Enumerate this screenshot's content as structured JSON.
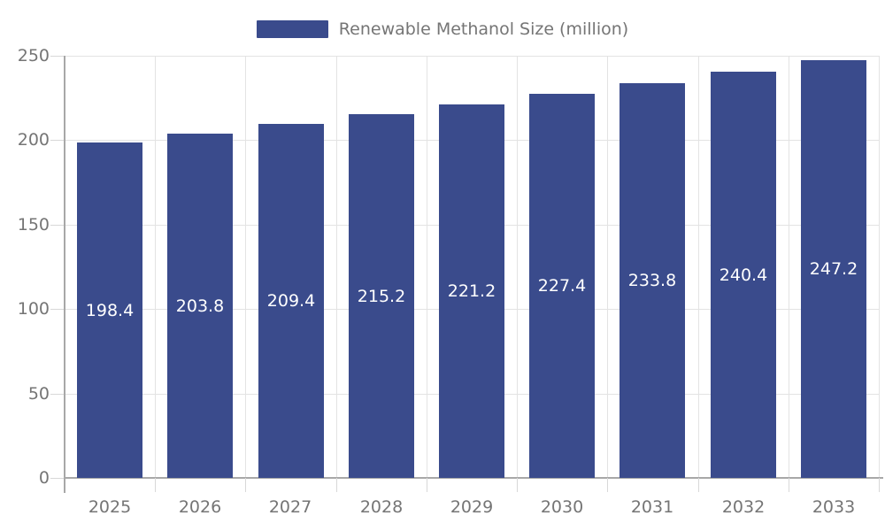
{
  "legend": {
    "label": "Renewable Methanol Size (million)"
  },
  "chart_data": {
    "type": "bar",
    "title": "",
    "xlabel": "",
    "ylabel": "",
    "categories": [
      "2025",
      "2026",
      "2027",
      "2028",
      "2029",
      "2030",
      "2031",
      "2032",
      "2033"
    ],
    "series": [
      {
        "name": "Renewable Methanol Size (million)",
        "values": [
          198.4,
          203.8,
          209.4,
          215.2,
          221.2,
          227.4,
          233.8,
          240.4,
          247.2
        ]
      }
    ],
    "value_labels": [
      "198.4",
      "203.8",
      "209.4",
      "215.2",
      "221.2",
      "227.4",
      "233.8",
      "240.4",
      "247.2"
    ],
    "ylim": [
      0,
      250
    ],
    "y_ticks": [
      0,
      50,
      100,
      150,
      200,
      250
    ],
    "grid": true,
    "legend_position": "top-center",
    "colors": {
      "bar": "#3A4B8C",
      "value_label": "#FFFFFF",
      "axis_label": "#757575",
      "grid_line": "#E3E3E3",
      "axis_line": "#A8A8A8",
      "tick_line": "#D8D8D8",
      "background": "#FFFFFF"
    }
  }
}
